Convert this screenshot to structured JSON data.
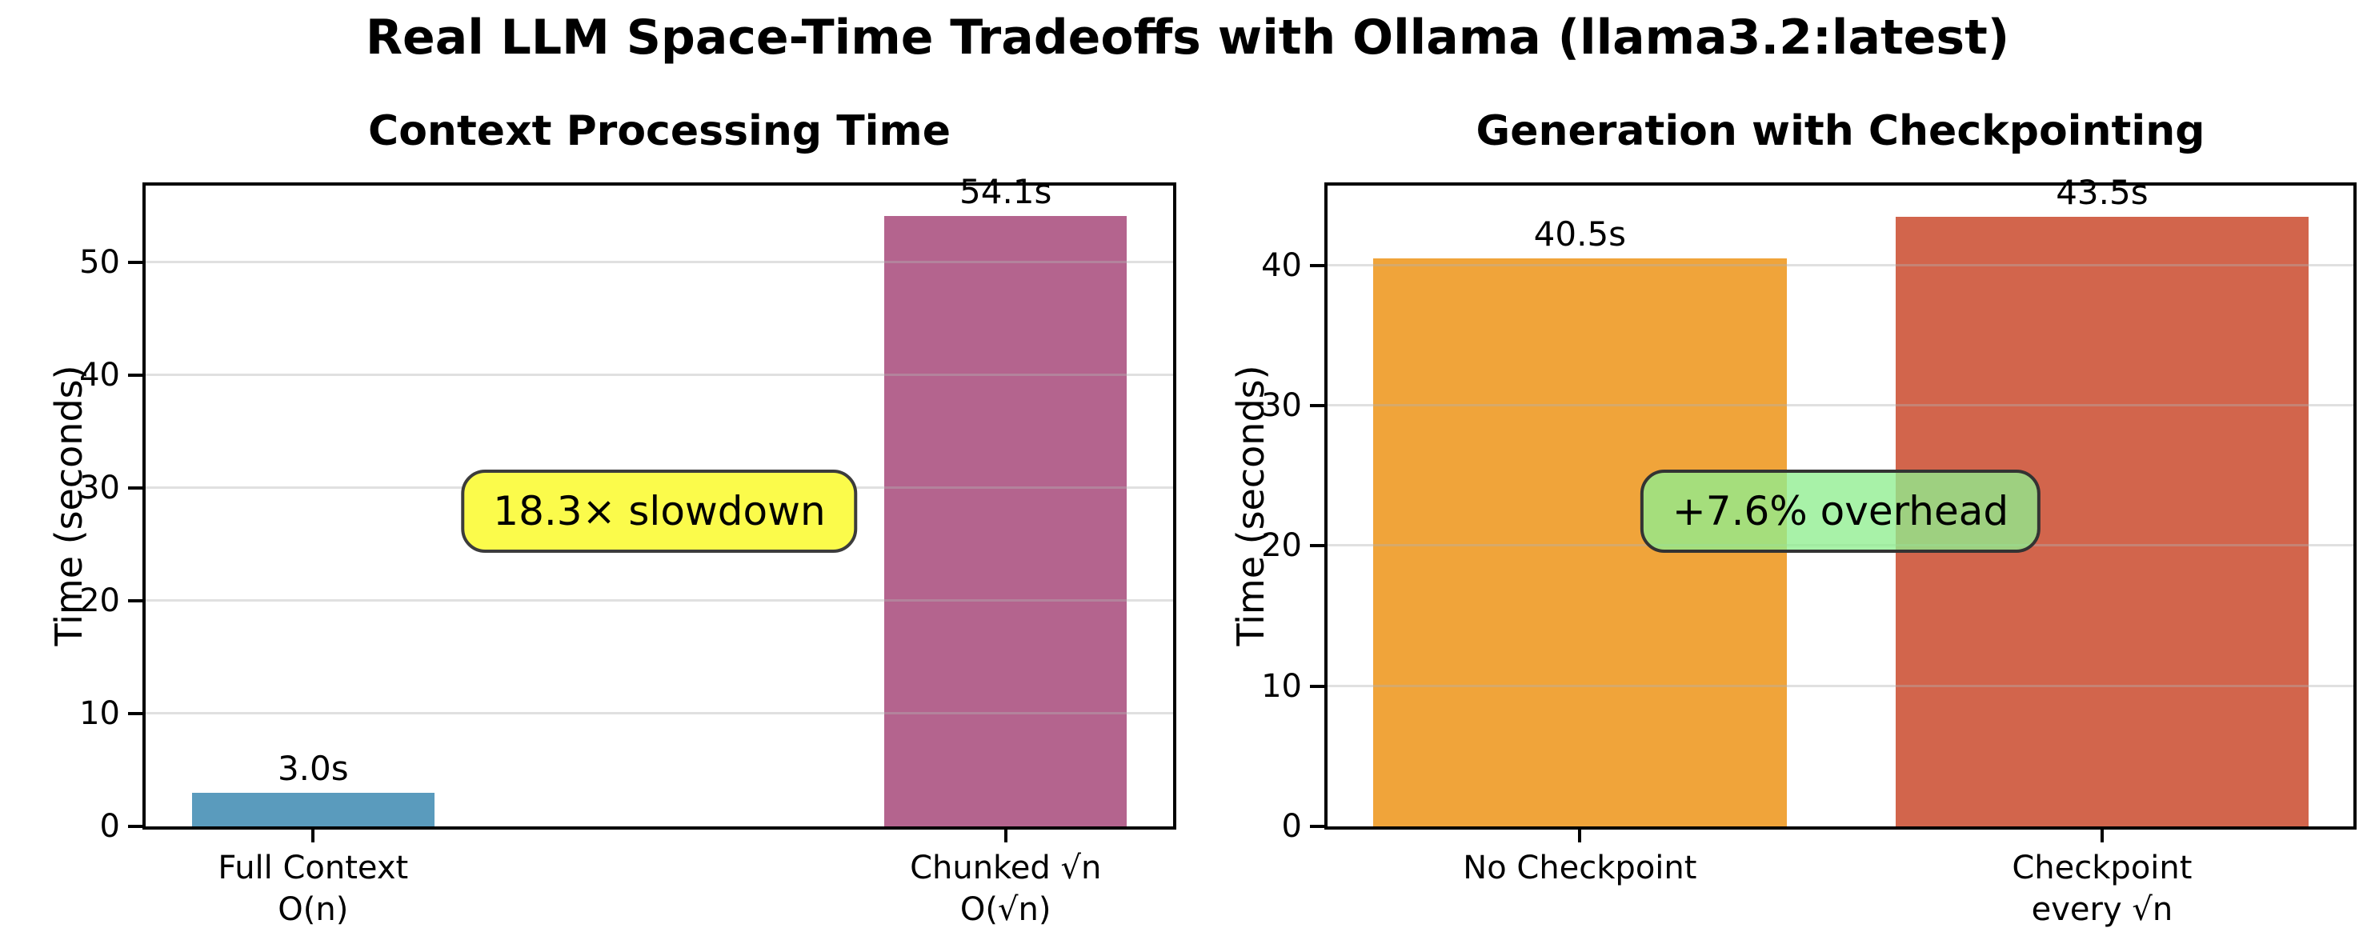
{
  "figure": {
    "title": "Real LLM Space-Time Tradeoffs with Ollama (llama3.2:latest)"
  },
  "chart_data": [
    {
      "type": "bar",
      "title": "Context Processing Time",
      "ylabel": "Time (seconds)",
      "ylim": [
        0,
        56.8
      ],
      "yticks": [
        0,
        10,
        20,
        30,
        40,
        50
      ],
      "grid": true,
      "categories": [
        [
          "Full Context",
          "O(n)"
        ],
        [
          "Chunked √n",
          "O(√n)"
        ]
      ],
      "values": [
        3.0,
        54.1
      ],
      "value_labels": [
        "3.0s",
        "54.1s"
      ],
      "bar_colors": [
        "#5a9bbd",
        "#b4648e"
      ],
      "annotation": {
        "text": "18.3× slowdown",
        "bg": "#fbfb4b",
        "border": "#3c3c3c"
      }
    },
    {
      "type": "bar",
      "title": "Generation with Checkpointing",
      "ylabel": "Time (seconds)",
      "ylim": [
        0,
        45.7
      ],
      "yticks": [
        0,
        10,
        20,
        30,
        40
      ],
      "grid": true,
      "categories": [
        [
          "No Checkpoint"
        ],
        [
          "Checkpoint",
          "every √n"
        ]
      ],
      "values": [
        40.5,
        43.5
      ],
      "value_labels": [
        "40.5s",
        "43.5s"
      ],
      "bar_colors": [
        "#f0a43a",
        "#d2654c"
      ],
      "annotation": {
        "text": "+7.6% overhead",
        "bg": "rgba(144,238,144,0.78)",
        "border": "#333333"
      }
    }
  ]
}
